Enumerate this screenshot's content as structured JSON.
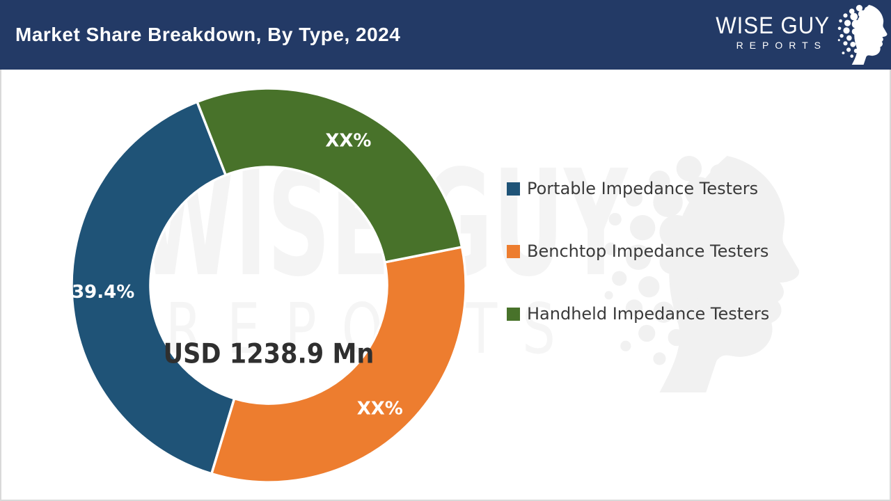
{
  "header": {
    "title": "Market Share Breakdown, By Type, 2024",
    "brand": {
      "name": "WISE GUY",
      "sub": "REPORTS"
    },
    "bg_color": "#233A66"
  },
  "watermark": {
    "line1": "WISE GUY",
    "line2": "REPORTS"
  },
  "chart_data": {
    "type": "donut",
    "title": "Market Share Breakdown, By Type, 2024",
    "center_label": "USD 1238.9 Mn",
    "legend_position": "right",
    "start_angle_deg": 111.3,
    "direction": "counterclockwise",
    "segments": [
      {
        "label": "Portable Impedance Testers",
        "display_value": "39.4%",
        "percent": 39.4,
        "color": "#1F5377"
      },
      {
        "label": "Benchtop Impedance Testers",
        "display_value": "XX%",
        "percent": 32.8,
        "color": "#ED7D2F"
      },
      {
        "label": "Handheld Impedance Testers",
        "display_value": "XX%",
        "percent": 27.8,
        "color": "#48722A"
      }
    ]
  }
}
